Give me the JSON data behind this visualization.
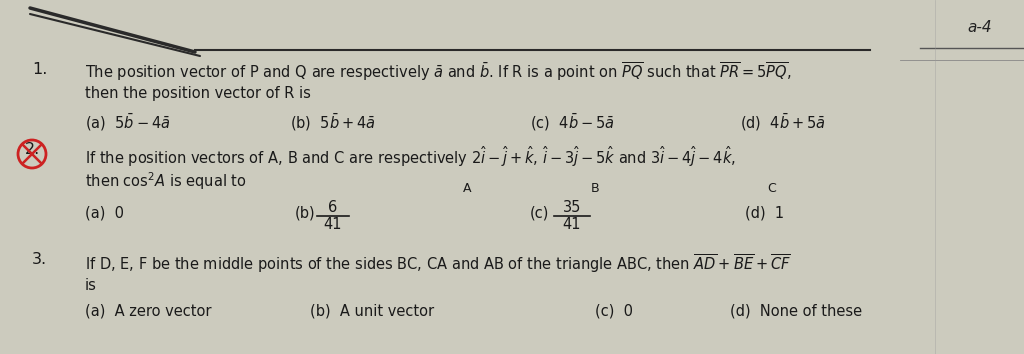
{
  "background_color": "#cccbbe",
  "text_color": "#1a1a1a",
  "font_size": 10.5,
  "q1_line1": "The position vector of P and Q are respectively $\\bar{a}$ and $\\bar{b}$. If R is a point on $\\overline{PQ}$ such that $\\overline{PR}=5\\overline{PQ}$,",
  "q1_line2": "then the position vector of R is",
  "q1_a": "(a)  $5\\bar{b}-4\\bar{a}$",
  "q1_b": "(b)  $5\\bar{b}+4\\bar{a}$",
  "q1_c": "(c)  $4\\bar{b}-5\\bar{a}$",
  "q1_d": "(d)  $4\\bar{b}+5\\bar{a}$",
  "q2_line1": "If the position vectors of A, B and C are respectively $2\\hat{i}-\\hat{j}+\\hat{k}$, $\\hat{i}-3\\hat{j}-5\\hat{k}$ and $3\\hat{i}-4\\hat{j}-4\\hat{k}$,",
  "q2_line2": "then $\\cos^2\\!A$ is equal to",
  "q2_a": "(a)  0",
  "q2_b_num": "6",
  "q2_b_den": "41",
  "q2_c_num": "35",
  "q2_c_den": "41",
  "q2_d": "(d)  1",
  "q3_line1": "If D, E, F be the middle points of the sides BC, CA and AB of the triangle ABC, then $\\overline{AD}+\\overline{BE}+\\overline{CF}$",
  "q3_line2": "is",
  "q3_a": "(a)  A zero vector",
  "q3_b": "(b)  A unit vector",
  "q3_c": "(c)  0",
  "q3_d": "(d)  None of these",
  "label_a": "A",
  "label_b": "B",
  "label_c": "C",
  "annot": "a-4"
}
